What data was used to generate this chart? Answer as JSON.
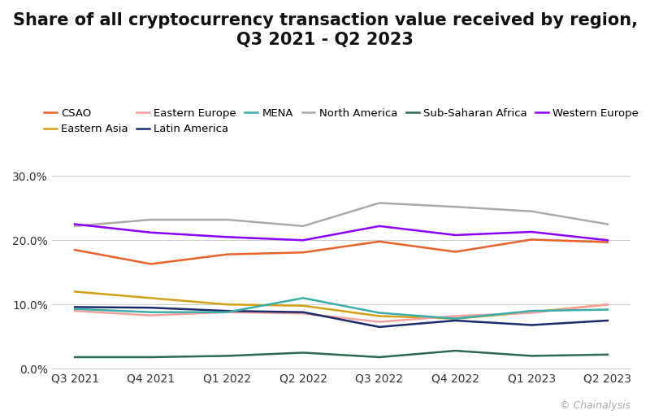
{
  "title": "Share of all cryptocurrency transaction value received by region,\nQ3 2021 - Q2 2023",
  "x_labels": [
    "Q3 2021",
    "Q4 2021",
    "Q1 2022",
    "Q2 2022",
    "Q3 2022",
    "Q4 2022",
    "Q1 2023",
    "Q2 2023"
  ],
  "series": {
    "CSAO": [
      0.185,
      0.163,
      0.178,
      0.181,
      0.198,
      0.182,
      0.201,
      0.197
    ],
    "Eastern Asia": [
      0.12,
      0.11,
      0.1,
      0.098,
      0.082,
      0.078,
      0.088,
      0.1
    ],
    "Eastern Europe": [
      0.09,
      0.083,
      0.088,
      0.086,
      0.073,
      0.082,
      0.087,
      0.1
    ],
    "Latin America": [
      0.096,
      0.095,
      0.09,
      0.088,
      0.065,
      0.075,
      0.068,
      0.075
    ],
    "MENA": [
      0.093,
      0.088,
      0.088,
      0.11,
      0.087,
      0.078,
      0.09,
      0.092
    ],
    "North America": [
      0.222,
      0.232,
      0.232,
      0.222,
      0.258,
      0.252,
      0.245,
      0.225
    ],
    "Sub-Saharan Africa": [
      0.018,
      0.018,
      0.02,
      0.025,
      0.018,
      0.028,
      0.02,
      0.022
    ],
    "Western Europe": [
      0.225,
      0.212,
      0.205,
      0.2,
      0.222,
      0.208,
      0.213,
      0.2
    ]
  },
  "colors": {
    "CSAO": "#E8622A",
    "Eastern Asia": "#D4A017",
    "Eastern Europe": "#F4A0A0",
    "Latin America": "#1B2A6B",
    "MENA": "#3AAFA9",
    "North America": "#AAAAAA",
    "Sub-Saharan Africa": "#2D6A4F",
    "Western Europe": "#8B00FF"
  },
  "ylim": [
    0.0,
    0.3
  ],
  "yticks": [
    0.0,
    0.1,
    0.2,
    0.3
  ],
  "background_color": "#ffffff",
  "copyright": "© Chainalysis",
  "title_fontsize": 15,
  "legend_fontsize": 9.5,
  "tick_fontsize": 10
}
